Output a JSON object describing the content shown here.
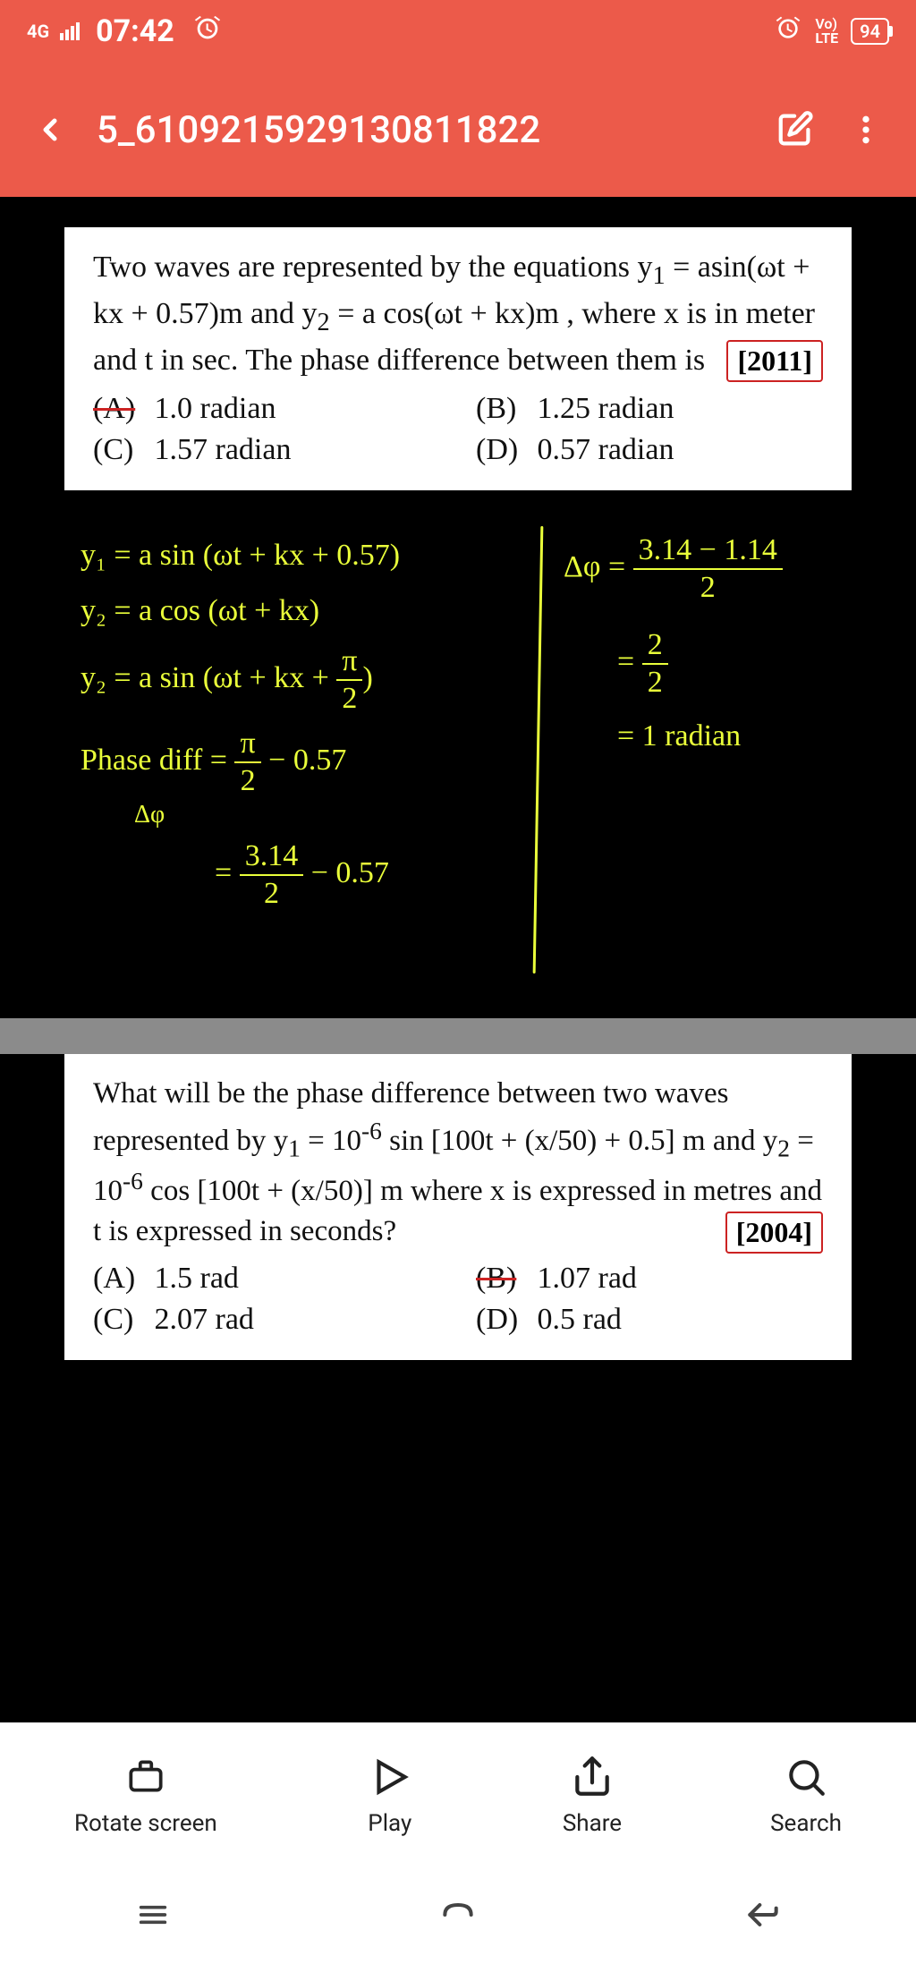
{
  "status": {
    "net": "4G",
    "time": "07:42",
    "lte_top": "Vo)",
    "lte_bot": "LTE",
    "battery": "94"
  },
  "header": {
    "title": "5_6109215929130811822"
  },
  "q1": {
    "text_html": "Two waves are represented by the equations y<sub>1</sub> = asin(ωt + kx + 0.57)m and y<sub>2</sub> = a cos(ωt + kx)m , where x is in meter and t in sec. The phase difference between them is",
    "year": "[2011]",
    "opts": {
      "A": "1.0 radian",
      "B": "1.25 radian",
      "C": "1.57 radian",
      "D": "0.57 radian"
    },
    "struck": "A"
  },
  "hand": {
    "l1": "y₁ = a sin (ωt + kx + 0.57)",
    "l2": "y₂ = a cos (ωt + kx)",
    "l3_pre": "y₂ = a sin (ωt + kx + ",
    "l3_num": "π",
    "l3_den": "2",
    "l3_post": ")",
    "l4_pre": "Phase diff = ",
    "l4_num": "π",
    "l4_den": "2",
    "l4_post": " − 0.57",
    "l4_sub": "Δφ",
    "l5_pre": "= ",
    "l5_num": "3.14",
    "l5_den": "2",
    "l5_post": " − 0.57",
    "r1_pre": "Δφ = ",
    "r1_num": "3.14 − 1.14",
    "r1_den": "2",
    "r2_pre": "= ",
    "r2_num": "2",
    "r2_den": "2",
    "r3": "= 1 radian"
  },
  "q2": {
    "text_html": "What will be the phase difference between two waves represented by y<sub>1</sub> = 10<sup>-6</sup> sin [100t + (x/50) + 0.5] m and y<sub>2</sub> = 10<sup>-6</sup> cos [100t + (x/50)] m where x is expressed in metres and t is expressed in seconds?",
    "year": "[2004]",
    "opts": {
      "A": "1.5 rad",
      "B": "1.07 rad",
      "C": "2.07 rad",
      "D": "0.5 rad"
    },
    "struck": "B"
  },
  "toolbar": {
    "rotate": "Rotate screen",
    "play": "Play",
    "share": "Share",
    "search": "Search"
  },
  "colors": {
    "accent": "#ec5a4a",
    "hand": "#eaff3a",
    "year_border": "#c22"
  }
}
